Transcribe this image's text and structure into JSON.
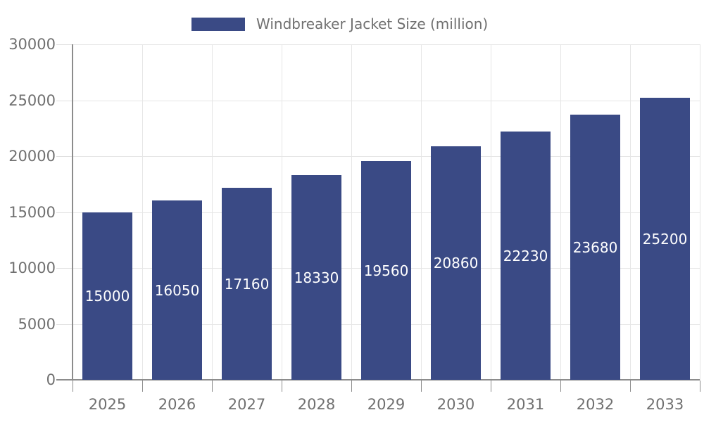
{
  "legend": {
    "label": "Windbreaker Jacket Size (million)"
  },
  "chart_data": {
    "type": "bar",
    "title": "Windbreaker Jacket Size (million)",
    "series": [
      {
        "name": "Windbreaker Jacket Size (million)",
        "values": [
          15000,
          16050,
          17160,
          18330,
          19560,
          20860,
          22230,
          23680,
          25200
        ]
      }
    ],
    "categories": [
      "2025",
      "2026",
      "2027",
      "2028",
      "2029",
      "2030",
      "2031",
      "2032",
      "2033"
    ],
    "data_labels": [
      "15000",
      "16050",
      "17160",
      "18330",
      "19560",
      "20860",
      "22230",
      "23680",
      "25200"
    ],
    "xlabel": "",
    "ylabel": "",
    "ylim": [
      0,
      30000
    ],
    "yticks": [
      0,
      5000,
      10000,
      15000,
      20000,
      25000,
      30000
    ],
    "grid": true,
    "legend_position": "top",
    "bar_color": "#3A4A85",
    "bar_label_color": "#ffffff",
    "axis_color": "#8c8c8c",
    "grid_color": "#e6e6e6",
    "tick_color": "#e0e0e0",
    "text_color": "#707070"
  }
}
